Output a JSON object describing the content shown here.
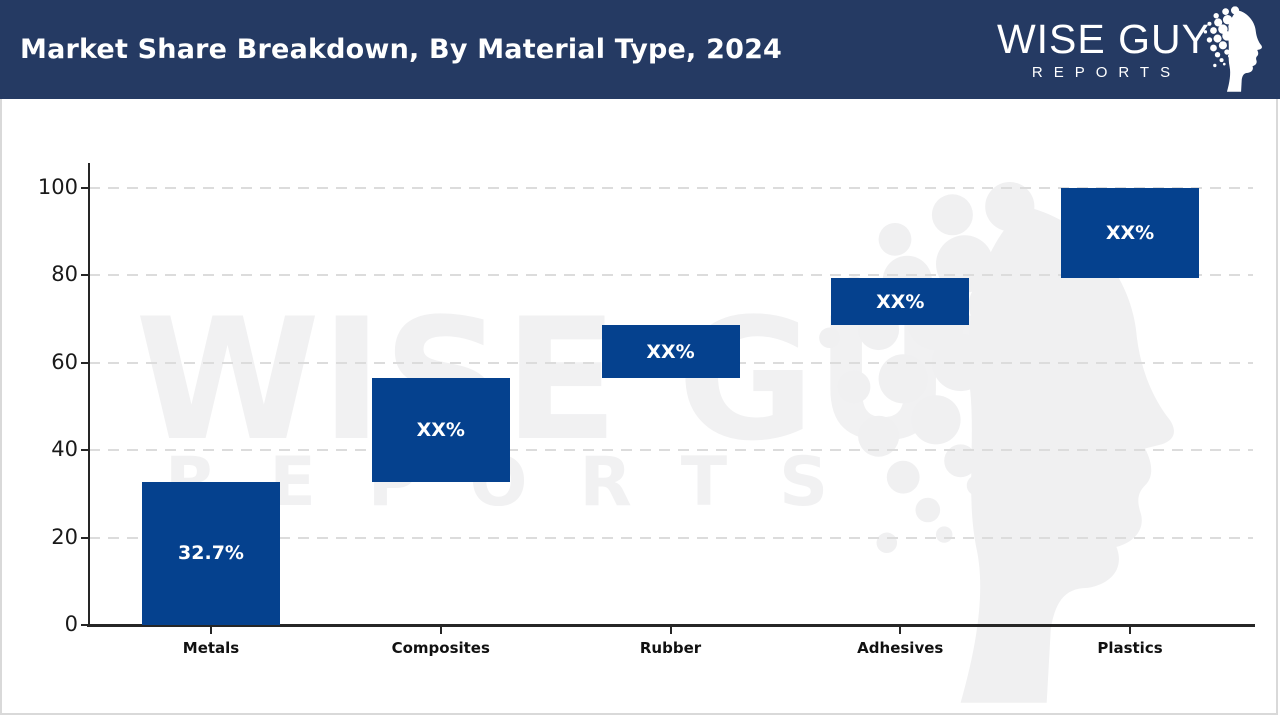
{
  "header": {
    "title": "Market Share Breakdown, By Material Type, 2024",
    "bg_color": "#253a63",
    "logo": {
      "line1": "WISE GUY",
      "line2": "REPORTS"
    }
  },
  "watermark": {
    "line1": "WISE GUY",
    "line2": "REPORTS"
  },
  "chart_data": {
    "type": "bar",
    "subtype": "waterfall",
    "title": "Market Share Breakdown, By Material Type, 2024",
    "categories": [
      "Metals",
      "Composites",
      "Rubber",
      "Adhesives",
      "Plastics"
    ],
    "bars": [
      {
        "category": "Metals",
        "start": 0,
        "end": 32.7,
        "value": 32.7,
        "label": "32.7%"
      },
      {
        "category": "Composites",
        "start": 32.7,
        "end": 56.4,
        "value": 23.7,
        "label": "XX%"
      },
      {
        "category": "Rubber",
        "start": 56.4,
        "end": 68.5,
        "value": 12.1,
        "label": "XX%"
      },
      {
        "category": "Adhesives",
        "start": 68.5,
        "end": 79.3,
        "value": 10.8,
        "label": "XX%"
      },
      {
        "category": "Plastics",
        "start": 79.3,
        "end": 100,
        "value": 20.7,
        "label": "XX%"
      }
    ],
    "xlabel": "",
    "ylabel": "",
    "ylim": [
      0,
      100
    ],
    "yticks": [
      0,
      20,
      40,
      60,
      80,
      100
    ],
    "grid": true,
    "gridline_style": "dashed",
    "bar_color": "#05418e",
    "bar_label_color": "#ffffff",
    "legend": "none"
  }
}
